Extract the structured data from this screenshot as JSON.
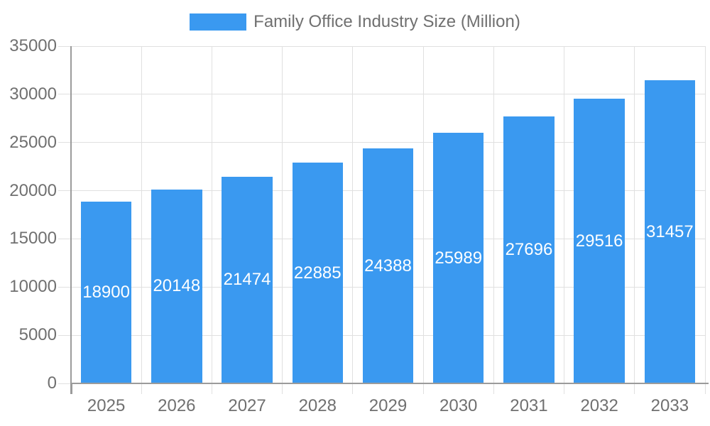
{
  "chart_data": {
    "type": "bar",
    "title": "Family Office Industry Size (Million)",
    "categories": [
      "2025",
      "2026",
      "2027",
      "2028",
      "2029",
      "2030",
      "2031",
      "2032",
      "2033"
    ],
    "values": [
      18900,
      20148,
      21474,
      22885,
      24388,
      25989,
      27696,
      29516,
      31457
    ],
    "xlabel": "",
    "ylabel": "",
    "ylim": [
      0,
      35000
    ],
    "ytick_step": 5000,
    "ytick_labels": [
      "0",
      "5000",
      "10000",
      "15000",
      "20000",
      "25000",
      "30000",
      "35000"
    ],
    "grid": true,
    "legend_position": "top",
    "value_labels": "inside-center",
    "colors": {
      "bar": "#3A99F0",
      "value_label": "#FFFFFF",
      "axis_text": "#707070",
      "grid": "#E0E0E0",
      "axis_line": "#9B9B9B",
      "background": "#FFFFFF"
    }
  }
}
